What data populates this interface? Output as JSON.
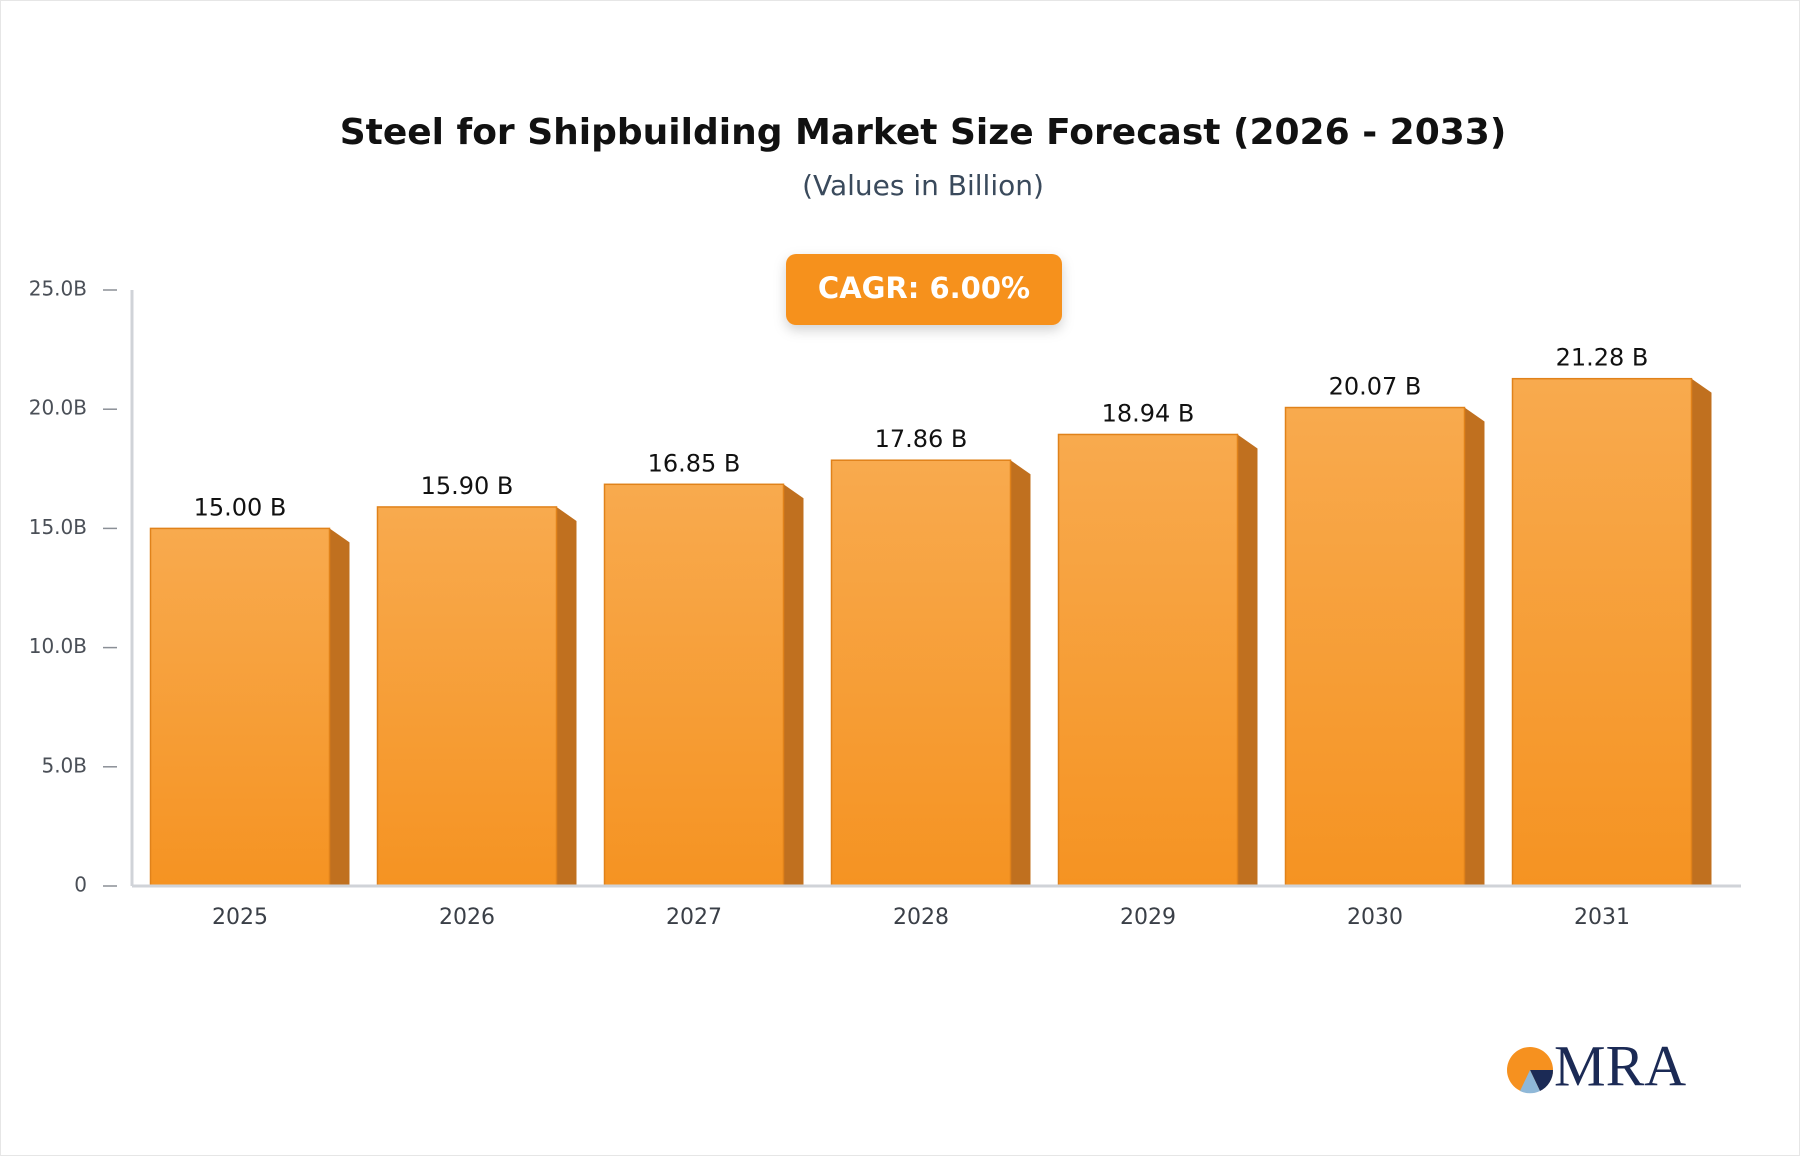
{
  "chart_data": {
    "type": "bar",
    "title": "Steel for Shipbuilding Market Size Forecast (2026 - 2033)",
    "subtitle": "(Values in Billion)",
    "annotation": "CAGR: 6.00%",
    "logo": "MRA",
    "categories": [
      "2025",
      "2026",
      "2027",
      "2028",
      "2029",
      "2030",
      "2031"
    ],
    "values": [
      15.0,
      15.9,
      16.85,
      17.86,
      18.94,
      20.07,
      21.28
    ],
    "value_labels": [
      "15.00 B",
      "15.90 B",
      "16.85 B",
      "17.86 B",
      "18.94 B",
      "20.07 B",
      "21.28 B"
    ],
    "color": "#f69c33",
    "ylim": [
      0,
      25
    ],
    "yticks": [
      0,
      {
        "value": 5,
        "label": "5.0B"
      },
      {
        "value": 10,
        "label": "10.0B"
      },
      {
        "value": 15,
        "label": "15.0B"
      },
      {
        "value": 20,
        "label": "20.0B"
      },
      {
        "value": 25,
        "label": "25.0B"
      }
    ],
    "grid": false
  }
}
